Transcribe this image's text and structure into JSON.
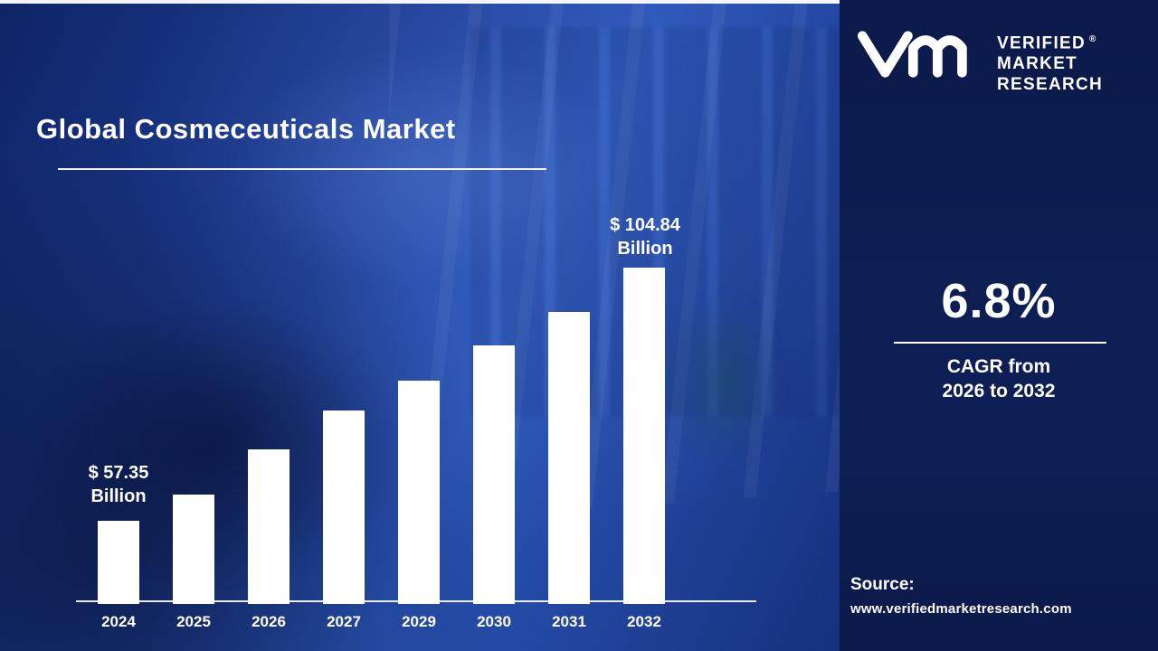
{
  "page": {
    "title": "Global Cosmeceuticals Market"
  },
  "chart_data": {
    "type": "bar",
    "title": "Global Cosmeceuticals Market",
    "categories": [
      "2024",
      "2025",
      "2026",
      "2027",
      "2029",
      "2030",
      "2031",
      "2032"
    ],
    "values": [
      57.35,
      62.2,
      70.8,
      78.1,
      83.6,
      90.2,
      96.6,
      104.84
    ],
    "unit": "USD Billion",
    "first_bar_annotation": {
      "line1": "$ 57.35",
      "line2": "Billion"
    },
    "last_bar_annotation": {
      "line1": "$ 104.84",
      "line2": "Billion"
    },
    "xlabel": "",
    "ylabel": "",
    "value_axis_visible": false,
    "grid": false,
    "bar_color": "#ffffff"
  },
  "brand": {
    "logo_lines": [
      "VERIFIED",
      "MARKET",
      "RESEARCH"
    ],
    "registered_mark": "®"
  },
  "stats": {
    "cagr_value": "6.8%",
    "cagr_line1": "CAGR from",
    "cagr_line2": "2026 to 2032"
  },
  "source": {
    "label": "Source:",
    "url": "www.verifiedmarketresearch.com"
  },
  "colors": {
    "left_background": "#1e3e96",
    "panel_background": "#0b1a4a",
    "bar": "#ffffff",
    "text": "#ffffff"
  }
}
